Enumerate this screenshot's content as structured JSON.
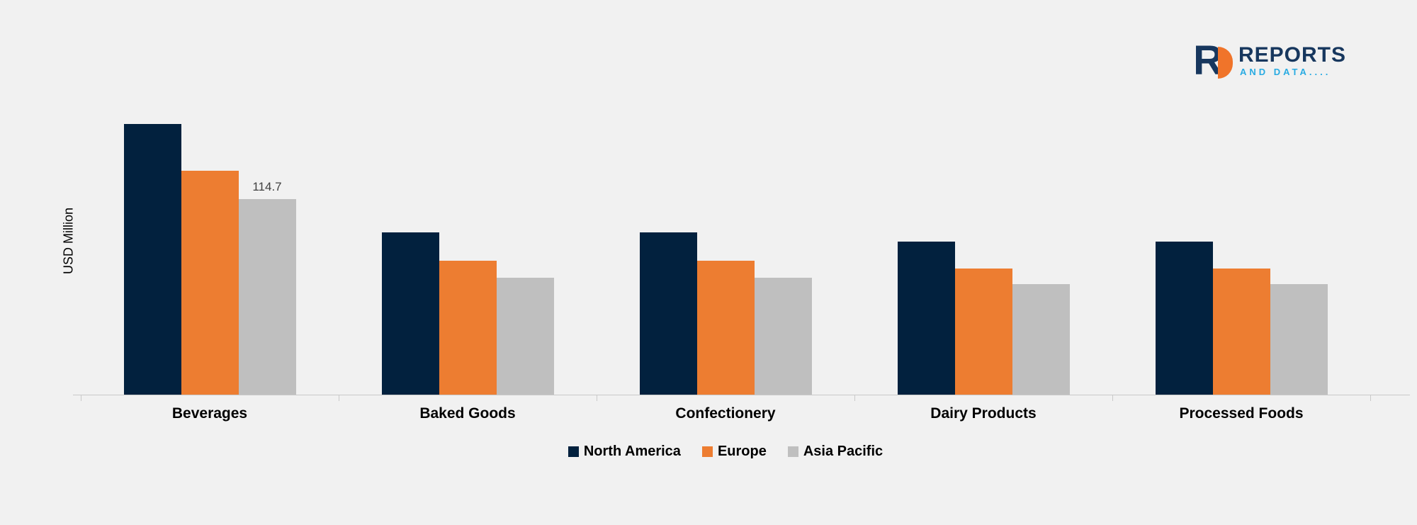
{
  "page": {
    "background": "#F1F1F1"
  },
  "logo": {
    "mark_r": "R",
    "title": "REPORTS",
    "subtitle": "AND DATA....",
    "colors": {
      "navy": "#17375E",
      "orange": "#F0742A",
      "blue": "#29ABE2"
    }
  },
  "chart_data": {
    "type": "bar",
    "title": "",
    "xlabel": "",
    "ylabel": "USD Million",
    "categories": [
      "Beverages",
      "Baked Goods",
      "Confectionery",
      "Dairy Products",
      "Processed Foods"
    ],
    "series": [
      {
        "name": "North America",
        "color": "#02213E",
        "values": [
          158.8,
          95.1,
          95.1,
          89.7,
          89.7
        ]
      },
      {
        "name": "Europe",
        "color": "#ED7D31",
        "values": [
          131.5,
          78.5,
          78.5,
          74.1,
          74.1
        ]
      },
      {
        "name": "Asia Pacific",
        "color": "#BFBFBF",
        "values": [
          114.7,
          68.4,
          68.4,
          64.8,
          64.8
        ]
      }
    ],
    "data_labels": [
      {
        "series": "Asia Pacific",
        "category": "Beverages",
        "text": "114.7"
      }
    ],
    "ylim": [
      0,
      170
    ],
    "grid": false,
    "legend_position": "bottom",
    "axis_color": "#C9C9C9",
    "background_color": "#F1F1F1"
  }
}
